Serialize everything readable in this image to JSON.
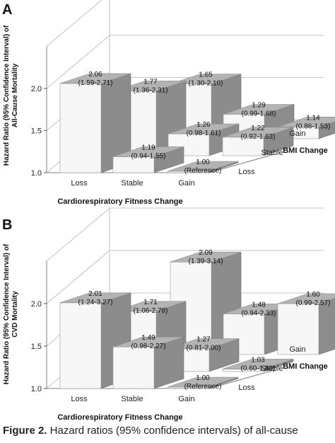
{
  "caption": {
    "label": "Figure 2.",
    "text": " Hazard ratios (95% confidence intervals) of all-cause"
  },
  "chart_data": [
    {
      "type": "bar3d",
      "panel_label": "A",
      "ylabel": "Hazard Ratio (95% Confidence Interval) of All-Cause Mortality",
      "xlabel": "Cardiorespiratory Fitness Change",
      "zlabel": "BMI Change",
      "x_categories": [
        "Loss",
        "Stable",
        "Gain"
      ],
      "z_categories": [
        "Loss",
        "Stable",
        "Gain"
      ],
      "yticks": [
        "1.0",
        "1.5",
        "2.0"
      ],
      "ylim": [
        1.0,
        2.5
      ],
      "bars": [
        {
          "x": "Loss",
          "z": "Loss",
          "value": 2.06,
          "label": "2.06",
          "ci": "(1.59-2.71)"
        },
        {
          "x": "Stable",
          "z": "Loss",
          "value": 1.19,
          "label": "1.19",
          "ci": "(0.94-1.55)"
        },
        {
          "x": "Gain",
          "z": "Loss",
          "value": 1.0,
          "label": "1.00",
          "ci": "(Reference)"
        },
        {
          "x": "Loss",
          "z": "Stable",
          "value": 1.77,
          "label": "1.77",
          "ci": "(1.36-2.31)"
        },
        {
          "x": "Stable",
          "z": "Stable",
          "value": 1.26,
          "label": "1.26",
          "ci": "(0.98-1.61)"
        },
        {
          "x": "Gain",
          "z": "Stable",
          "value": 1.22,
          "label": "1.22",
          "ci": "(0.92-1.63)"
        },
        {
          "x": "Loss",
          "z": "Gain",
          "value": 1.65,
          "label": "1.65",
          "ci": "(1.30-2.10)"
        },
        {
          "x": "Stable",
          "z": "Gain",
          "value": 1.29,
          "label": "1.29",
          "ci": "(0.99-1.68)"
        },
        {
          "x": "Gain",
          "z": "Gain",
          "value": 1.14,
          "label": "1.14",
          "ci": "(0.86-1.53)"
        }
      ]
    },
    {
      "type": "bar3d",
      "panel_label": "B",
      "ylabel": "Hazard Ratio (95% Confidence Interval) of CVD Mortality",
      "xlabel": "Cardiorespiratory Fitness Change",
      "zlabel": "BMI Change",
      "x_categories": [
        "Loss",
        "Stable",
        "Gain"
      ],
      "z_categories": [
        "Loss",
        "Stable",
        "Gain"
      ],
      "yticks": [
        "1.0",
        "1.5",
        "2.0"
      ],
      "ylim": [
        1.0,
        2.5
      ],
      "bars": [
        {
          "x": "Loss",
          "z": "Loss",
          "value": 2.01,
          "label": "2.01",
          "ci": "(1.24-3.27)"
        },
        {
          "x": "Stable",
          "z": "Loss",
          "value": 1.49,
          "label": "1.49",
          "ci": "(0.98-2.27)"
        },
        {
          "x": "Gain",
          "z": "Loss",
          "value": 1.0,
          "label": "1.00",
          "ci": "(Reference)"
        },
        {
          "x": "Loss",
          "z": "Stable",
          "value": 1.71,
          "label": "1.71",
          "ci": "(1.06-2.78)"
        },
        {
          "x": "Stable",
          "z": "Stable",
          "value": 1.27,
          "label": "1.27",
          "ci": "(0.81-2.00)"
        },
        {
          "x": "Gain",
          "z": "Stable",
          "value": 1.03,
          "label": "1.03",
          "ci": "(0.60-1.80)"
        },
        {
          "x": "Loss",
          "z": "Gain",
          "value": 2.09,
          "label": "2.09",
          "ci": "(1.39-3.14)"
        },
        {
          "x": "Stable",
          "z": "Gain",
          "value": 1.48,
          "label": "1.48",
          "ci": "(0.94-2.33)"
        },
        {
          "x": "Gain",
          "z": "Gain",
          "value": 1.6,
          "label": "1.60",
          "ci": "(0.99-2.57)"
        }
      ]
    }
  ]
}
